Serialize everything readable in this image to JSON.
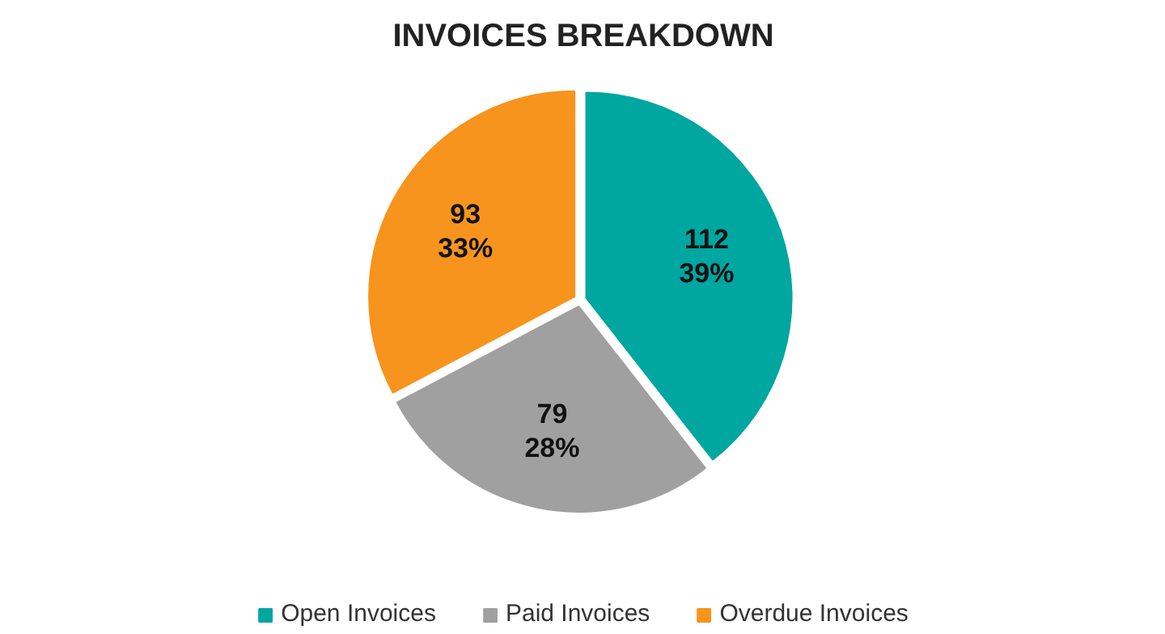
{
  "chart_data": {
    "type": "pie",
    "title": "INVOICES BREAKDOWN",
    "categories": [
      "Open Invoices",
      "Paid Invoices",
      "Overdue Invoices"
    ],
    "values": [
      112,
      79,
      93
    ],
    "colors": [
      "#00a6a0",
      "#a0a0a0",
      "#f7941d"
    ],
    "value_labels": [
      "112\n39%",
      "79\n28%",
      "93\n33%"
    ],
    "legend": "bottom"
  }
}
